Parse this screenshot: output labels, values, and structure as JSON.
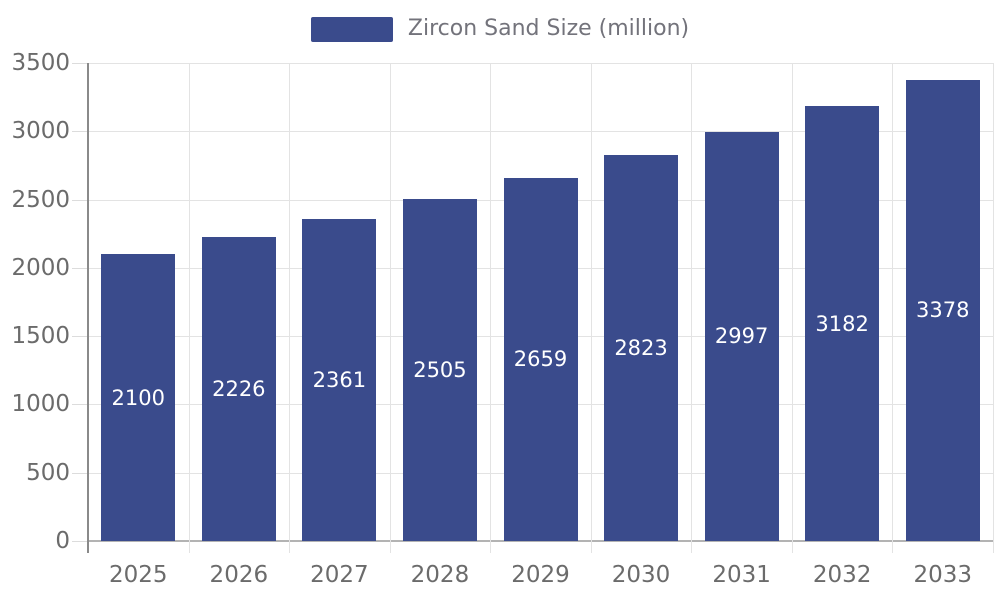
{
  "legend": {
    "label": "Zircon Sand Size (million)"
  },
  "chart_data": {
    "type": "bar",
    "title": "",
    "xlabel": "",
    "ylabel": "",
    "categories": [
      "2025",
      "2026",
      "2027",
      "2028",
      "2029",
      "2030",
      "2031",
      "2032",
      "2033"
    ],
    "series": [
      {
        "name": "Zircon Sand Size (million)",
        "values": [
          2100,
          2226,
          2361,
          2505,
          2659,
          2823,
          2997,
          3182,
          3378
        ]
      }
    ],
    "bar_labels": [
      "2100",
      "2226",
      "2361",
      "2505",
      "2659",
      "2823",
      "2997",
      "3182",
      "3378"
    ],
    "ylim": [
      0,
      3500
    ],
    "yticks": [
      0,
      500,
      1000,
      1500,
      2000,
      2500,
      3000,
      3500
    ],
    "grid": true,
    "legend_position": "top-center",
    "colors": {
      "bar": "#3A4B8C",
      "bar_label": "#FFFFFF",
      "tick_label": "#6B6B6B",
      "legend_text": "#73737B",
      "gridline": "#E3E3E3",
      "baseline": "#B3B3B3",
      "y_axis_line": "#8A8A8A"
    }
  }
}
